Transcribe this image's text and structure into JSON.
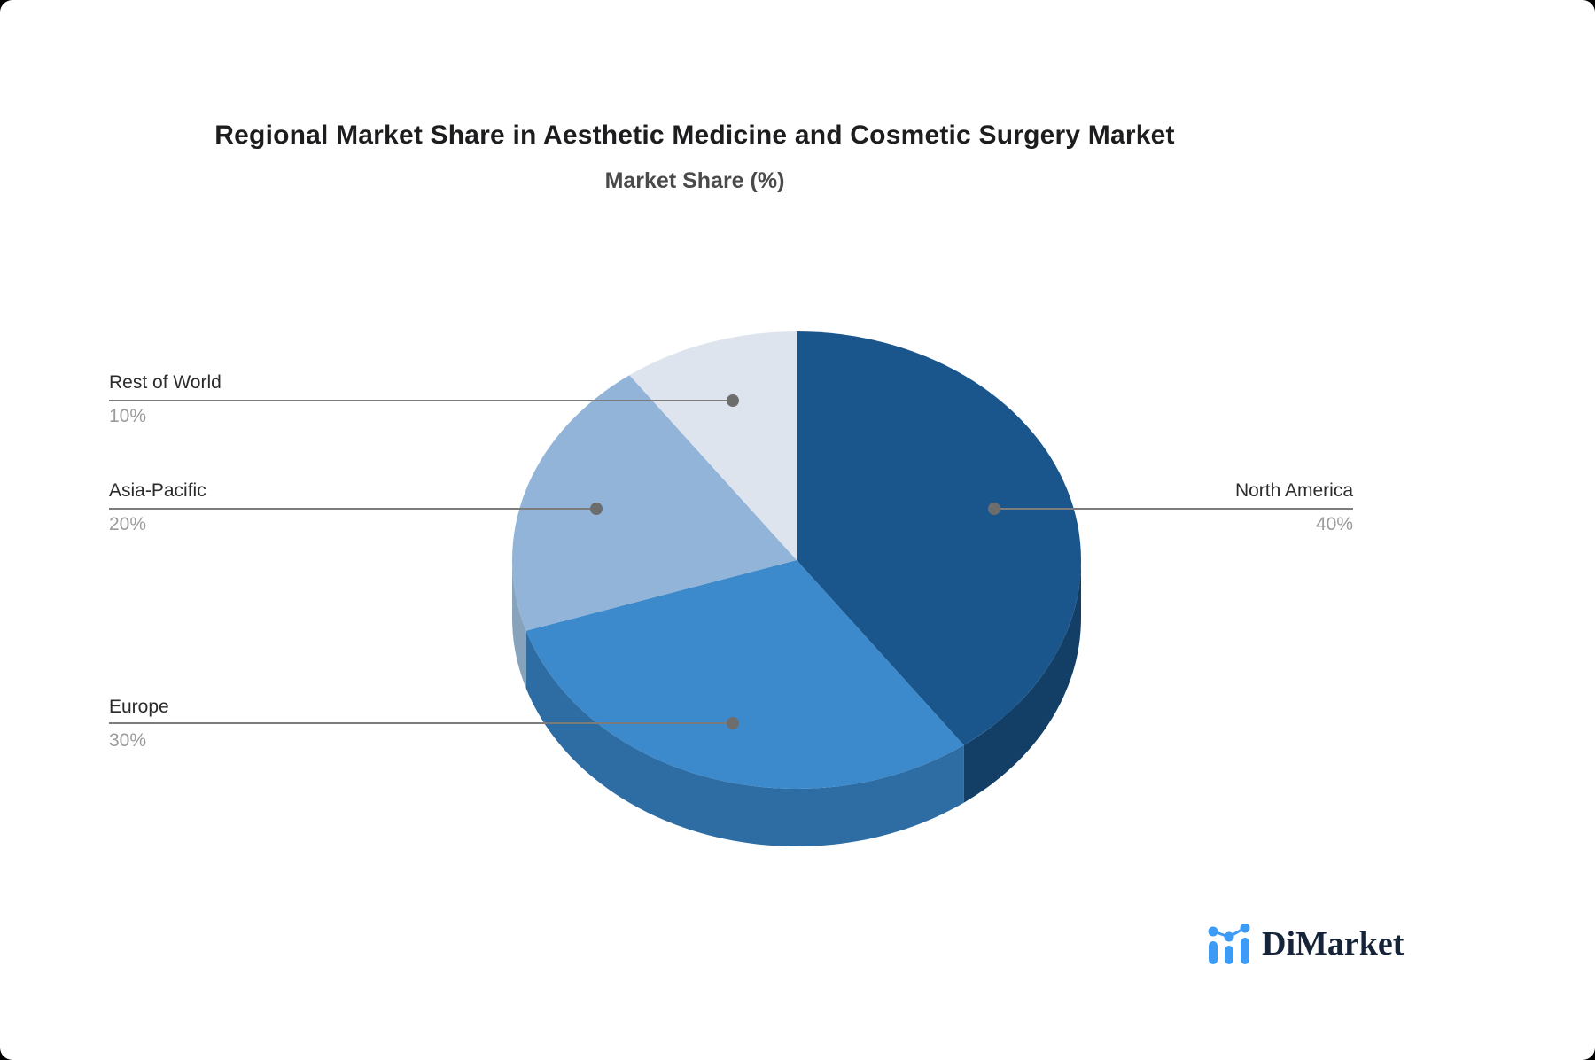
{
  "header": {
    "title": "Regional Market Share in Aesthetic Medicine and Cosmetic Surgery Market",
    "subtitle": "Market Share (%)"
  },
  "chart_data": {
    "type": "pie",
    "title": "Regional Market Share in Aesthetic Medicine and Cosmetic Surgery Market",
    "subtitle": "Market Share (%)",
    "unit": "%",
    "style": "3d-pie",
    "start_angle_deg": 0,
    "direction": "clockwise",
    "legend": "none",
    "slices": [
      {
        "label": "North America",
        "value": 40,
        "display": "40%",
        "color": "#1A568C",
        "side_color": "#133F66",
        "label_side": "right"
      },
      {
        "label": "Europe",
        "value": 30,
        "display": "30%",
        "color": "#3C89CB",
        "side_color": "#2E6DA3",
        "label_side": "left"
      },
      {
        "label": "Asia-Pacific",
        "value": 20,
        "display": "20%",
        "color": "#92B4D8",
        "side_color": "#87A2BB",
        "label_side": "left"
      },
      {
        "label": "Rest of World",
        "value": 10,
        "display": "10%",
        "color": "#DEE4EE",
        "side_color": "#C2CBD9",
        "label_side": "left"
      }
    ],
    "leader_line_color": "#7c7c7c",
    "leader_dot_color": "#6d6d6d"
  },
  "logo": {
    "text": "DiMarket",
    "icon": "bar-line-chart-icon",
    "icon_color": "#3D9BF5",
    "text_color": "#16243a"
  }
}
